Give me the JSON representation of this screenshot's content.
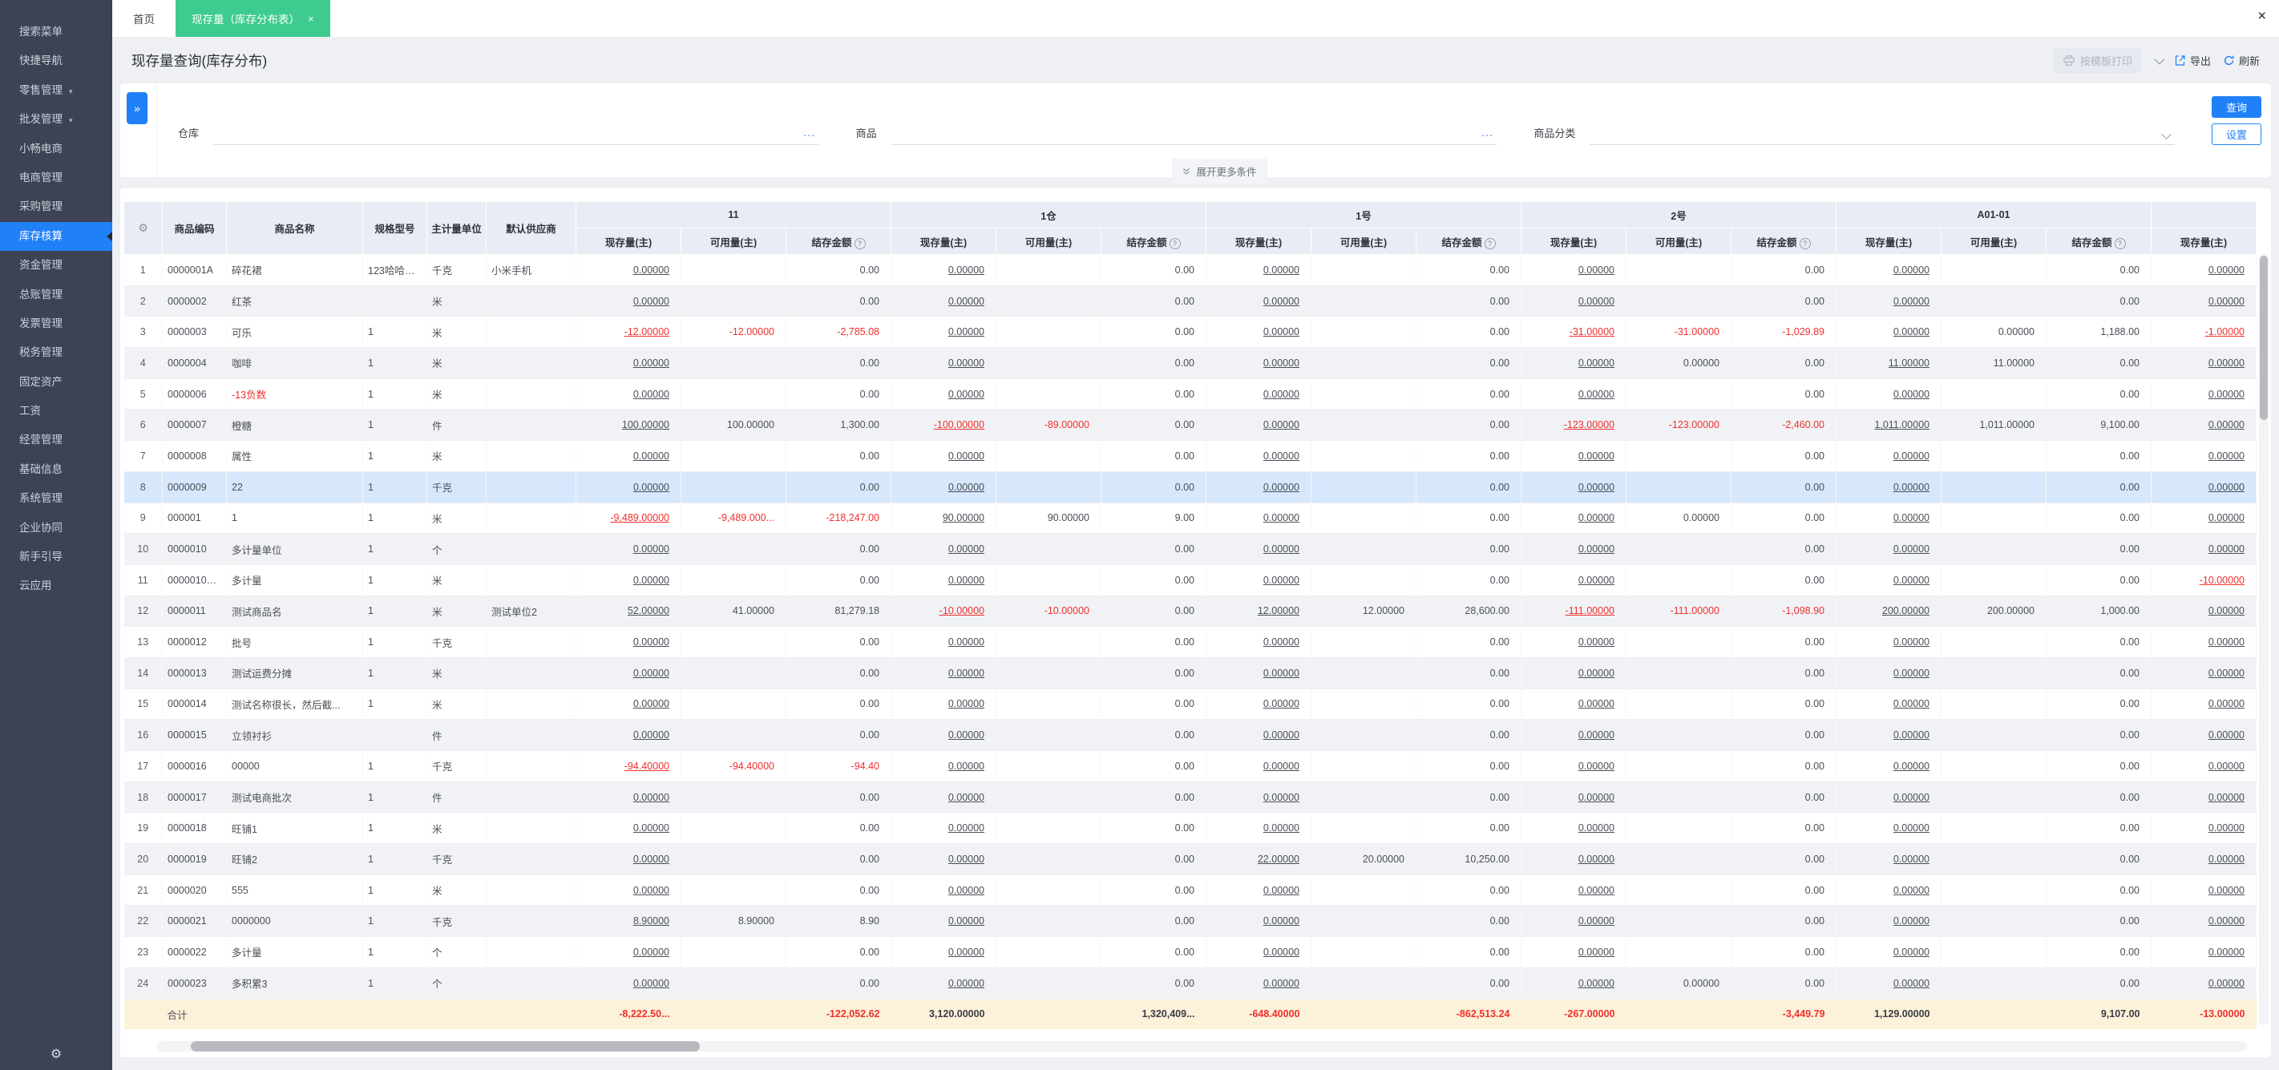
{
  "window": {
    "close": "×"
  },
  "tabs": {
    "home": "首页",
    "current": {
      "label": "现存量（库存分布表）",
      "close": "×"
    }
  },
  "header": {
    "title": "现存量查询(库存分布)",
    "print": "按模板打印",
    "export": "导出",
    "refresh": "刷新"
  },
  "filters": {
    "warehouse_label": "仓库",
    "product_label": "商品",
    "category_label": "商品分类",
    "ellipsis": "···",
    "expand_more": "展开更多条件",
    "query": "查询",
    "settings": "设置"
  },
  "sidebar": {
    "gear": "⚙",
    "items": [
      {
        "label": "搜索菜单"
      },
      {
        "label": "快捷导航"
      },
      {
        "label": "零售管理",
        "caret": true
      },
      {
        "label": "批发管理",
        "caret": true
      },
      {
        "label": "小畅电商"
      },
      {
        "label": "电商管理"
      },
      {
        "label": "采购管理"
      },
      {
        "label": "库存核算",
        "active": true
      },
      {
        "label": "资金管理"
      },
      {
        "label": "总账管理"
      },
      {
        "label": "发票管理"
      },
      {
        "label": "税务管理"
      },
      {
        "label": "固定资产"
      },
      {
        "label": "工资"
      },
      {
        "label": "经营管理"
      },
      {
        "label": "基础信息"
      },
      {
        "label": "系统管理"
      },
      {
        "label": "企业协同"
      },
      {
        "label": "新手引导"
      },
      {
        "label": "云应用"
      }
    ]
  },
  "colors": {
    "accent": "#2080f7",
    "tab_green": "#3ecb8f",
    "negative": "#f0302c",
    "header_bg": "#e9ecf4",
    "alt_row": "#f1f2f6",
    "selected_row": "#d7e8fc",
    "total_bg": "#fcf1d9",
    "sidebar_bg": "#3d4354"
  },
  "table": {
    "settings_icon": "⚙",
    "info_mark": "?",
    "fixed_columns": [
      "商品编码",
      "商品名称",
      "规格型号",
      "主计量单位",
      "默认供应商"
    ],
    "groups": [
      {
        "name": "11",
        "span": 3
      },
      {
        "name": "1仓",
        "span": 3
      },
      {
        "name": "1号",
        "span": 3
      },
      {
        "name": "2号",
        "span": 3
      },
      {
        "name": "A01-01",
        "span": 3
      },
      {
        "name": "",
        "span": 1
      }
    ],
    "sub_columns": [
      "现存量(主)",
      "可用量(主)",
      "结存金额"
    ],
    "total_label": "合计",
    "rows": [
      {
        "seq": 1,
        "code": "0000001A",
        "name": "碎花裙",
        "spec": "123哈哈哈...",
        "unit": "千克",
        "supplier": "小米手机",
        "cells": [
          "0.00000",
          "",
          "0.00",
          "0.00000",
          "",
          "0.00",
          "0.00000",
          "",
          "0.00",
          "0.00000",
          "",
          "0.00",
          "0.00000",
          "",
          "0.00",
          "0.00000"
        ]
      },
      {
        "seq": 2,
        "code": "0000002",
        "name": "红茶",
        "spec": "",
        "unit": "米",
        "supplier": "",
        "cells": [
          "0.00000",
          "",
          "0.00",
          "0.00000",
          "",
          "0.00",
          "0.00000",
          "",
          "0.00",
          "0.00000",
          "",
          "0.00",
          "0.00000",
          "",
          "0.00",
          "0.00000"
        ]
      },
      {
        "seq": 3,
        "code": "0000003",
        "name": "可乐",
        "spec": "1",
        "unit": "米",
        "supplier": "",
        "cells": [
          "-12.00000",
          "-12.00000",
          "-2,785.08",
          "0.00000",
          "",
          "0.00",
          "0.00000",
          "",
          "0.00",
          "-31.00000",
          "-31.00000",
          "-1,029.89",
          "0.00000",
          "0.00000",
          "1,188.00",
          "-1.00000"
        ]
      },
      {
        "seq": 4,
        "code": "0000004",
        "name": "咖啡",
        "spec": "1",
        "unit": "米",
        "supplier": "",
        "cells": [
          "0.00000",
          "",
          "0.00",
          "0.00000",
          "",
          "0.00",
          "0.00000",
          "",
          "0.00",
          "0.00000",
          "0.00000",
          "0.00",
          "11.00000",
          "11.00000",
          "0.00",
          "0.00000"
        ]
      },
      {
        "seq": 5,
        "code": "0000006",
        "name": "-13负数",
        "name_red": true,
        "spec": "1",
        "unit": "米",
        "supplier": "",
        "cells": [
          "0.00000",
          "",
          "0.00",
          "0.00000",
          "",
          "0.00",
          "0.00000",
          "",
          "0.00",
          "0.00000",
          "",
          "0.00",
          "0.00000",
          "",
          "0.00",
          "0.00000"
        ]
      },
      {
        "seq": 6,
        "code": "0000007",
        "name": "橙糖",
        "spec": "1",
        "unit": "件",
        "supplier": "",
        "cells": [
          "100.00000",
          "100.00000",
          "1,300.00",
          "-100.00000",
          "-89.00000",
          "0.00",
          "0.00000",
          "",
          "0.00",
          "-123.00000",
          "-123.00000",
          "-2,460.00",
          "1,011.00000",
          "1,011.00000",
          "9,100.00",
          "0.00000"
        ]
      },
      {
        "seq": 7,
        "code": "0000008",
        "name": "属性",
        "spec": "1",
        "unit": "米",
        "supplier": "",
        "cells": [
          "0.00000",
          "",
          "0.00",
          "0.00000",
          "",
          "0.00",
          "0.00000",
          "",
          "0.00",
          "0.00000",
          "",
          "0.00",
          "0.00000",
          "",
          "0.00",
          "0.00000"
        ]
      },
      {
        "seq": 8,
        "code": "0000009",
        "name": "22",
        "spec": "1",
        "unit": "千克",
        "supplier": "",
        "selected": true,
        "cells": [
          "0.00000",
          "",
          "0.00",
          "0.00000",
          "",
          "0.00",
          "0.00000",
          "",
          "0.00",
          "0.00000",
          "",
          "0.00",
          "0.00000",
          "",
          "0.00",
          "0.00000"
        ]
      },
      {
        "seq": 9,
        "code": "000001",
        "name": "1",
        "spec": "1",
        "unit": "米",
        "supplier": "",
        "cells": [
          "-9,489.00000",
          "-9,489.000...",
          "-218,247.00",
          "90.00000",
          "90.00000",
          "9.00",
          "0.00000",
          "",
          "0.00",
          "0.00000",
          "0.00000",
          "0.00",
          "0.00000",
          "",
          "0.00",
          "0.00000"
        ]
      },
      {
        "seq": 10,
        "code": "0000010",
        "name": "多计量单位",
        "spec": "1",
        "unit": "个",
        "supplier": "",
        "cells": [
          "0.00000",
          "",
          "0.00",
          "0.00000",
          "",
          "0.00",
          "0.00000",
          "",
          "0.00",
          "0.00000",
          "",
          "0.00",
          "0.00000",
          "",
          "0.00",
          "0.00000"
        ]
      },
      {
        "seq": 11,
        "code": "000001051...",
        "name": "多计量",
        "spec": "1",
        "unit": "米",
        "supplier": "",
        "cells": [
          "0.00000",
          "",
          "0.00",
          "0.00000",
          "",
          "0.00",
          "0.00000",
          "",
          "0.00",
          "0.00000",
          "",
          "0.00",
          "0.00000",
          "",
          "0.00",
          "-10.00000"
        ]
      },
      {
        "seq": 12,
        "code": "0000011",
        "name": "测试商品名",
        "spec": "1",
        "unit": "米",
        "supplier": "测试单位2",
        "cells": [
          "52.00000",
          "41.00000",
          "81,279.18",
          "-10.00000",
          "-10.00000",
          "0.00",
          "12.00000",
          "12.00000",
          "28,600.00",
          "-111.00000",
          "-111.00000",
          "-1,098.90",
          "200.00000",
          "200.00000",
          "1,000.00",
          "0.00000"
        ]
      },
      {
        "seq": 13,
        "code": "0000012",
        "name": "批号",
        "spec": "1",
        "unit": "千克",
        "supplier": "",
        "cells": [
          "0.00000",
          "",
          "0.00",
          "0.00000",
          "",
          "0.00",
          "0.00000",
          "",
          "0.00",
          "0.00000",
          "",
          "0.00",
          "0.00000",
          "",
          "0.00",
          "0.00000"
        ]
      },
      {
        "seq": 14,
        "code": "0000013",
        "name": "测试运费分摊",
        "spec": "1",
        "unit": "米",
        "supplier": "",
        "cells": [
          "0.00000",
          "",
          "0.00",
          "0.00000",
          "",
          "0.00",
          "0.00000",
          "",
          "0.00",
          "0.00000",
          "",
          "0.00",
          "0.00000",
          "",
          "0.00",
          "0.00000"
        ]
      },
      {
        "seq": 15,
        "code": "0000014",
        "name": "测试名称很长，然后截...",
        "spec": "1",
        "unit": "米",
        "supplier": "",
        "cells": [
          "0.00000",
          "",
          "0.00",
          "0.00000",
          "",
          "0.00",
          "0.00000",
          "",
          "0.00",
          "0.00000",
          "",
          "0.00",
          "0.00000",
          "",
          "0.00",
          "0.00000"
        ]
      },
      {
        "seq": 16,
        "code": "0000015",
        "name": "立领衬衫",
        "spec": "",
        "unit": "件",
        "supplier": "",
        "cells": [
          "0.00000",
          "",
          "0.00",
          "0.00000",
          "",
          "0.00",
          "0.00000",
          "",
          "0.00",
          "0.00000",
          "",
          "0.00",
          "0.00000",
          "",
          "0.00",
          "0.00000"
        ]
      },
      {
        "seq": 17,
        "code": "0000016",
        "name": "00000",
        "spec": "1",
        "unit": "千克",
        "supplier": "",
        "cells": [
          "-94.40000",
          "-94.40000",
          "-94.40",
          "0.00000",
          "",
          "0.00",
          "0.00000",
          "",
          "0.00",
          "0.00000",
          "",
          "0.00",
          "0.00000",
          "",
          "0.00",
          "0.00000"
        ]
      },
      {
        "seq": 18,
        "code": "0000017",
        "name": "测试电商批次",
        "spec": "1",
        "unit": "件",
        "supplier": "",
        "cells": [
          "0.00000",
          "",
          "0.00",
          "0.00000",
          "",
          "0.00",
          "0.00000",
          "",
          "0.00",
          "0.00000",
          "",
          "0.00",
          "0.00000",
          "",
          "0.00",
          "0.00000"
        ]
      },
      {
        "seq": 19,
        "code": "0000018",
        "name": "旺铺1",
        "spec": "1",
        "unit": "米",
        "supplier": "",
        "cells": [
          "0.00000",
          "",
          "0.00",
          "0.00000",
          "",
          "0.00",
          "0.00000",
          "",
          "0.00",
          "0.00000",
          "",
          "0.00",
          "0.00000",
          "",
          "0.00",
          "0.00000"
        ]
      },
      {
        "seq": 20,
        "code": "0000019",
        "name": "旺铺2",
        "spec": "1",
        "unit": "千克",
        "supplier": "",
        "cells": [
          "0.00000",
          "",
          "0.00",
          "0.00000",
          "",
          "0.00",
          "22.00000",
          "20.00000",
          "10,250.00",
          "0.00000",
          "",
          "0.00",
          "0.00000",
          "",
          "0.00",
          "0.00000"
        ]
      },
      {
        "seq": 21,
        "code": "0000020",
        "name": "555",
        "spec": "1",
        "unit": "米",
        "supplier": "",
        "cells": [
          "0.00000",
          "",
          "0.00",
          "0.00000",
          "",
          "0.00",
          "0.00000",
          "",
          "0.00",
          "0.00000",
          "",
          "0.00",
          "0.00000",
          "",
          "0.00",
          "0.00000"
        ]
      },
      {
        "seq": 22,
        "code": "0000021",
        "name": "0000000",
        "spec": "1",
        "unit": "千克",
        "supplier": "",
        "cells": [
          "8.90000",
          "8.90000",
          "8.90",
          "0.00000",
          "",
          "0.00",
          "0.00000",
          "",
          "0.00",
          "0.00000",
          "",
          "0.00",
          "0.00000",
          "",
          "0.00",
          "0.00000"
        ]
      },
      {
        "seq": 23,
        "code": "0000022",
        "name": "多计量",
        "spec": "1",
        "unit": "个",
        "supplier": "",
        "cells": [
          "0.00000",
          "",
          "0.00",
          "0.00000",
          "",
          "0.00",
          "0.00000",
          "",
          "0.00",
          "0.00000",
          "",
          "0.00",
          "0.00000",
          "",
          "0.00",
          "0.00000"
        ]
      },
      {
        "seq": 24,
        "code": "0000023",
        "name": "多积累3",
        "spec": "1",
        "unit": "个",
        "supplier": "",
        "cells": [
          "0.00000",
          "",
          "0.00",
          "0.00000",
          "",
          "0.00",
          "0.00000",
          "",
          "0.00",
          "0.00000",
          "0.00000",
          "0.00",
          "0.00000",
          "",
          "0.00",
          "0.00000"
        ]
      }
    ],
    "total_cells": [
      "-8,222.50...",
      "",
      "-122,052.62",
      "3,120.00000",
      "",
      "1,320,409...",
      "-648.40000",
      "",
      "-862,513.24",
      "-267.00000",
      "",
      "-3,449.79",
      "1,129.00000",
      "",
      "9,107.00",
      "-13.00000"
    ]
  }
}
